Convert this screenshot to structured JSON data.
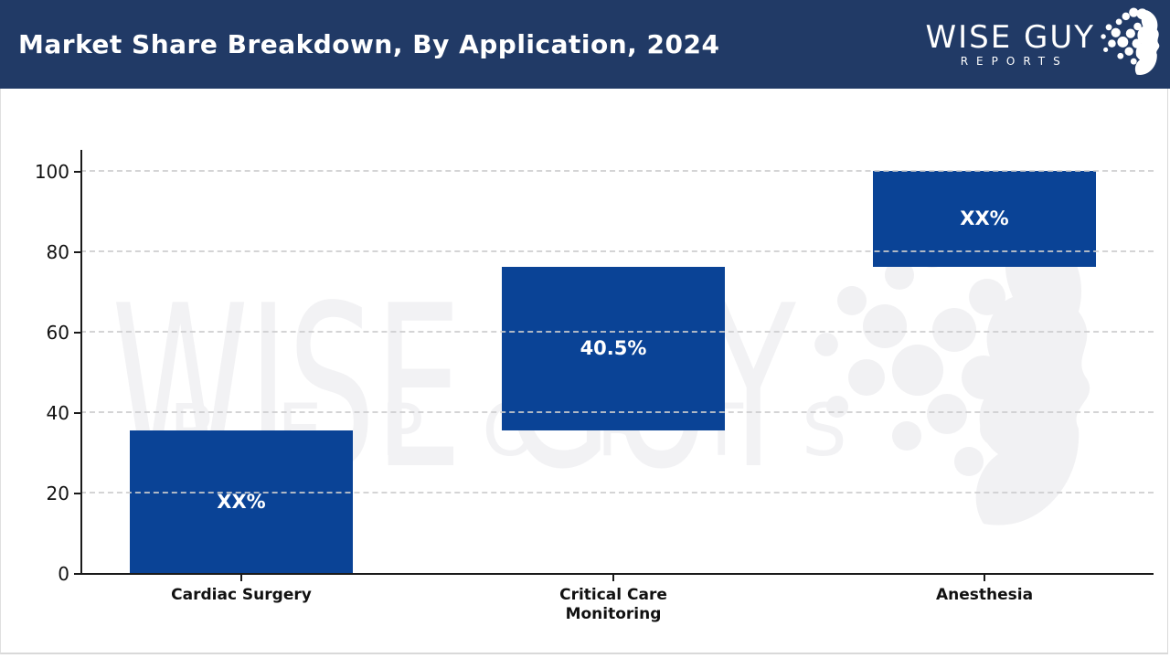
{
  "header": {
    "title": "Market Share Breakdown, By Application, 2024",
    "brand": {
      "line1": "WISE GUY",
      "line2": "REPORTS"
    }
  },
  "watermark": {
    "line1": "WISE GUY",
    "line2": "REPORTS"
  },
  "chart_data": {
    "type": "bar",
    "subtype": "floating-segment-breakdown",
    "title": "Market Share Breakdown, By Application, 2024",
    "categories": [
      "Cardiac Surgery",
      "Critical Care Monitoring",
      "Anesthesia"
    ],
    "segments": [
      {
        "category": "Cardiac Surgery",
        "start": 0,
        "end": 35.5,
        "label": "XX%"
      },
      {
        "category": "Critical Care Monitoring",
        "start": 35.5,
        "end": 76,
        "label": "40.5%"
      },
      {
        "category": "Anesthesia",
        "start": 76,
        "end": 100,
        "label": "XX%"
      }
    ],
    "ylabel": "",
    "xlabel": "",
    "yticks": [
      0,
      20,
      40,
      60,
      80,
      100
    ],
    "ylim": [
      0,
      105
    ],
    "grid": "horizontal-dashed-over-bars",
    "legend": "none",
    "bar_color": "#0a4396",
    "header_color": "#213a66",
    "grid_color": "#cccccc",
    "watermark_color": "#f2f2f4"
  }
}
